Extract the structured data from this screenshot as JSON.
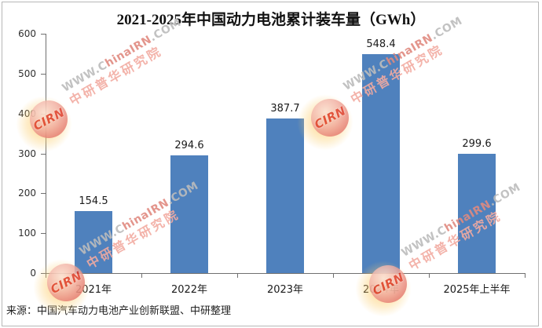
{
  "title": "2021-2025年中国动力电池累计装车量（GWh）",
  "source_note": "来源：中国汽车动力电池产业创新联盟、中研整理",
  "chart_data": {
    "type": "bar",
    "title": "2021-2025年中国动力电池累计装车量（GWh）",
    "categories": [
      "2021年",
      "2022年",
      "2023年",
      "2024年",
      "2025年上半年"
    ],
    "values": [
      154.5,
      294.6,
      387.7,
      548.4,
      299.6
    ],
    "value_labels": [
      "154.5",
      "294.6",
      "387.7",
      "548.4",
      "299.6"
    ],
    "unit": "GWh",
    "xlabel": "",
    "ylabel": "",
    "ylim": [
      0,
      600
    ],
    "yticks": [
      0,
      100,
      200,
      300,
      400,
      500,
      600
    ],
    "grid": false,
    "legend": "none",
    "bar_color": "#4F81BD",
    "source": "来源：中国汽车动力电池产业创新联盟、中研整理"
  },
  "watermark": {
    "logo_text": "CIRN",
    "url_text_parts": [
      "WWW.C",
      "hinaIRN",
      ".COM"
    ],
    "cn_text": "中研普华研究院",
    "colors": {
      "url_gray": "#bcbcbc",
      "url_red": "#e08a80",
      "cn_pink": "#f2aba1",
      "logo_red": "#dd3524",
      "glow_yellow": "#fcce6e"
    }
  }
}
